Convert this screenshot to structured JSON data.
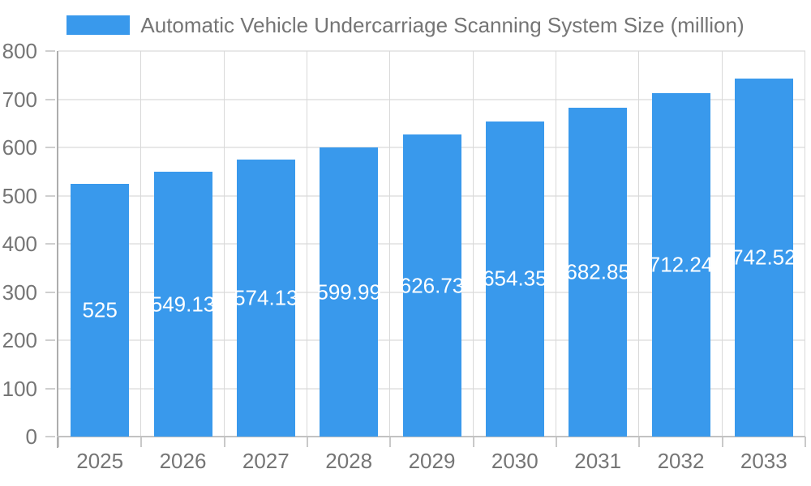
{
  "legend": {
    "label": "Automatic Vehicle Undercarriage Scanning System Size (million)"
  },
  "colors": {
    "bar": "#3999ec",
    "axis_text": "#757575",
    "bar_label_text": "#ffffff"
  },
  "chart_data": {
    "type": "bar",
    "title": "Automatic Vehicle Undercarriage Scanning System Size (million)",
    "categories": [
      "2025",
      "2026",
      "2027",
      "2028",
      "2029",
      "2030",
      "2031",
      "2032",
      "2033"
    ],
    "values": [
      525,
      549.13,
      574.13,
      599.99,
      626.73,
      654.35,
      682.85,
      712.24,
      742.52
    ],
    "value_labels": [
      "525",
      "549.13",
      "574.13",
      "599.99",
      "626.73",
      "654.35",
      "682.85",
      "712.24",
      "742.52"
    ],
    "xlabel": "",
    "ylabel": "",
    "ylim": [
      0,
      800
    ],
    "yticks": [
      0,
      100,
      200,
      300,
      400,
      500,
      600,
      700,
      800
    ],
    "grid": true,
    "legend_position": "top"
  }
}
